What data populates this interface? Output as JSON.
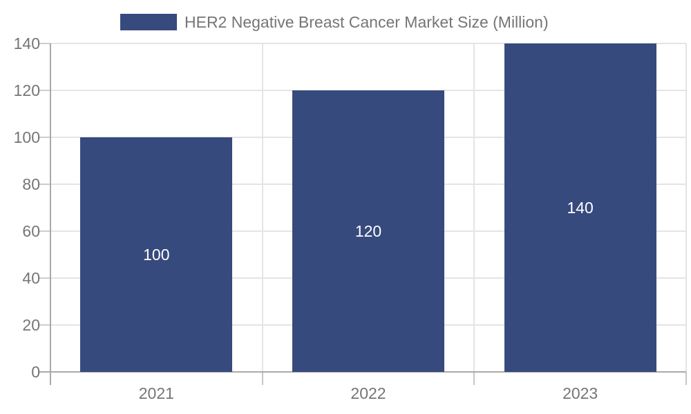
{
  "chart_data": {
    "type": "bar",
    "title": "HER2 Negative Breast Cancer Market Size (Million)",
    "categories": [
      "2021",
      "2022",
      "2023"
    ],
    "values": [
      100,
      120,
      140
    ],
    "data_labels": [
      "100",
      "120",
      "140"
    ],
    "series": [
      {
        "name": "HER2 Negative Breast Cancer Market Size (Million)",
        "values": [
          100,
          120,
          140
        ]
      }
    ],
    "yticks": [
      "0",
      "20",
      "40",
      "60",
      "80",
      "100",
      "120",
      "140"
    ],
    "ytick_values": [
      0,
      20,
      40,
      60,
      80,
      100,
      120,
      140
    ],
    "ylim": [
      0,
      140
    ],
    "xlabel": "",
    "ylabel": "",
    "grid": true,
    "legend_position": "top"
  },
  "colors": {
    "bar": "#374A7E",
    "data_label": "#FFFFFF",
    "axis_line": "#A9A9A9",
    "grid_line": "#E4E4E4",
    "y_tick": "#CCCCCC",
    "x_tick": "#C6C6C6",
    "text": "#757575",
    "background": "#FFFFFF"
  }
}
